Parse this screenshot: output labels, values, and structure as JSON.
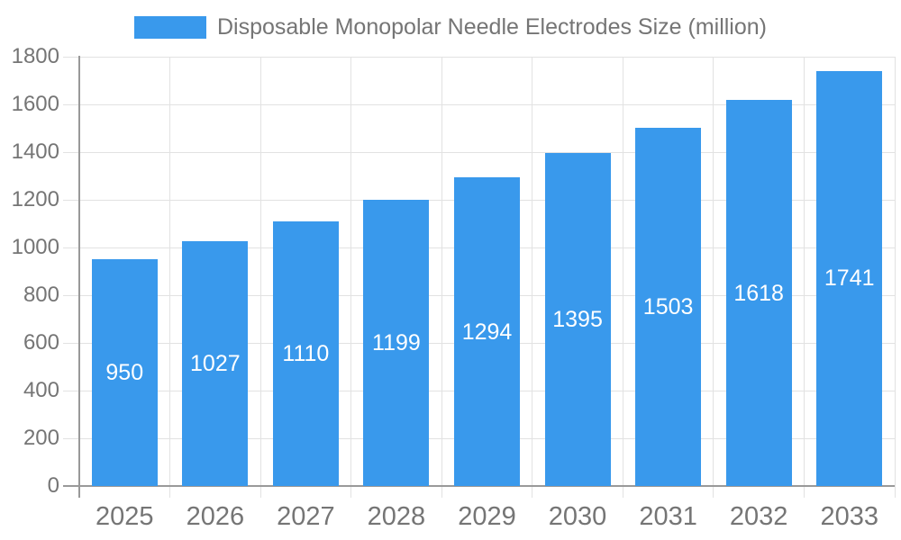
{
  "chart_data": {
    "type": "bar",
    "title": "Disposable Monopolar Needle Electrodes Size (million)",
    "legend_position": "top",
    "grid": true,
    "categories": [
      "2025",
      "2026",
      "2027",
      "2028",
      "2029",
      "2030",
      "2031",
      "2032",
      "2033"
    ],
    "values": [
      950,
      1027,
      1110,
      1199,
      1294,
      1395,
      1503,
      1618,
      1741
    ],
    "yticks": [
      0,
      200,
      400,
      600,
      800,
      1000,
      1200,
      1400,
      1600,
      1800
    ],
    "ylim": [
      0,
      1800
    ],
    "xlabel": "",
    "ylabel": "",
    "bar_color": "#3999EC",
    "value_label_color": "#ffffff",
    "axis_text_color": "#757575",
    "axis_line_color": "#999999",
    "grid_color": "#e2e2e2",
    "background_color": "#ffffff"
  }
}
